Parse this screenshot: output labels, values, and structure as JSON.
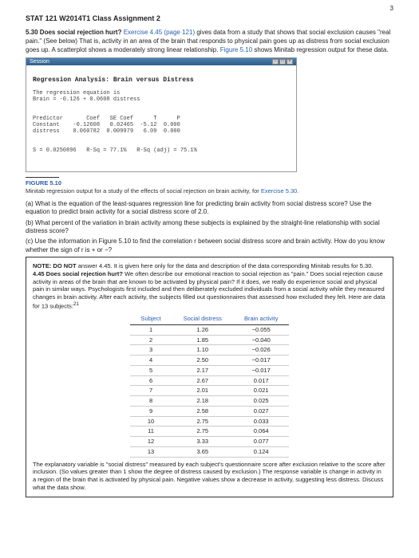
{
  "page_number": "3",
  "course_header": "STAT 121 W2014T1 Class Assignment 2",
  "intro": {
    "lead_bold": "5.30 Does social rejection hurt?",
    "ex_link": "Exercise 4.45 (page 121)",
    "line1_rest": " gives data from a study that shows that social exclusion causes \"real pain.\"  (See below) That is, activity in an area of the brain that responds to physical pain goes up as distress from social exclusion goes up. A scatterplot shows a moderately strong linear relationship. ",
    "fig_link": "Figure 5.10",
    "line2_rest": " shows Minitab regression output for these data."
  },
  "minitab": {
    "window_title": "Session",
    "heading": "Regression Analysis: Brain versus Distress",
    "eqline1": "The regression equation is",
    "eqline2": "Brain = -0.126 + 0.0608 distress",
    "table": "Predictor       Coef   SE Coef      T      P\nConstant    -0.12608   0.02465  -5.12  0.000\ndistress    0.060782  0.009979   6.09  0.000",
    "stats": "S = 0.0250896   R-Sq = 77.1%   R-Sq (adj) = 75.1%"
  },
  "figcap_title": "FIGURE 5.10",
  "figcap_body": "Minitab regression output for a study of the effects of social rejection on brain activity, for ",
  "figcap_link": "Exercise 5.30.",
  "qa": "(a)  What is the equation of the least-squares regression line for predicting brain activity from social distress score? Use the equation to predict brain activity for a social distress score of 2.0.",
  "qb": "(b)  What percent of the variation in brain activity among these subjects is explained by the straight-line relationship with social distress score?",
  "qc": "(c)  Use the information in Figure 5.10 to find the correlation r between social distress score and brain activity. How do you know whether the sign of r is + or −?",
  "note": {
    "prefix_bold": "NOTE: DO NOT",
    "line1": " answer 4.45. It is given here only for the data and description of the data corresponding Minitab results for 5.30.",
    "lead_bold": "4.45 Does social rejection hurt?",
    "body": " We often describe our emotional reaction to social rejection as \"pain.\" Does social rejection cause activity in areas of the brain that are known to be activated by physical pain? If it does, we really do experience social and physical pain in similar ways. Psychologists first included and then deliberately excluded individuals from a social activity while they measured changes in brain activity. After each activity, the subjects filled out questionnaires that assessed how excluded they felt. Here are data for 13 subjects:",
    "sup": "21",
    "headers": [
      "Subject",
      "Social distress",
      "Brain activity"
    ],
    "rows": [
      [
        "1",
        "1.26",
        "−0.055"
      ],
      [
        "2",
        "1.85",
        "−0.040"
      ],
      [
        "3",
        "1.10",
        "−0.026"
      ],
      [
        "4",
        "2.50",
        "−0.017"
      ],
      [
        "5",
        "2.17",
        "−0.017"
      ],
      [
        "6",
        "2.67",
        "0.017"
      ],
      [
        "7",
        "2.01",
        "0.021"
      ],
      [
        "8",
        "2.18",
        "0.025"
      ],
      [
        "9",
        "2.58",
        "0.027"
      ],
      [
        "10",
        "2.75",
        "0.033"
      ],
      [
        "11",
        "2.75",
        "0.064"
      ],
      [
        "12",
        "3.33",
        "0.077"
      ],
      [
        "13",
        "3.65",
        "0.124"
      ]
    ],
    "footer": "The explanatory variable is \"social distress\" measured by each subject's questionnaire score after exclusion relative to the score after inclusion. (So values greater than 1 show the degree of distress caused by exclusion.) The response variable is change in activity in a region of the brain that is activated by physical pain. Negative values show a decrease in activity, suggesting less distress. Discuss what the data show."
  }
}
